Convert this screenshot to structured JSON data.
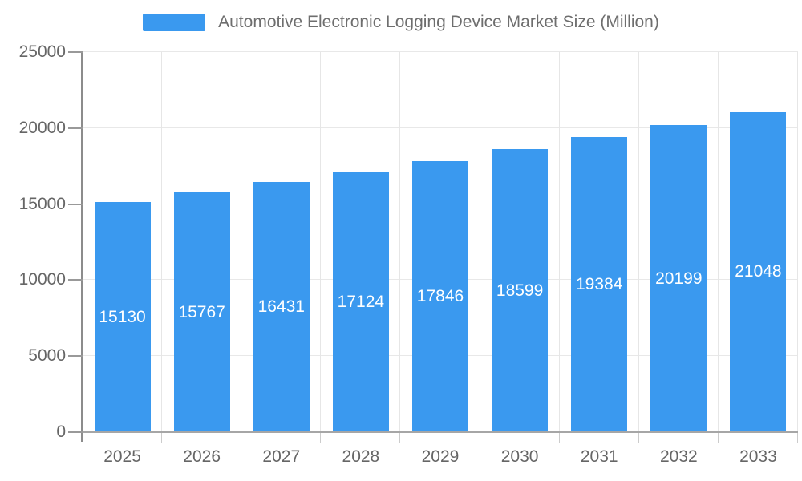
{
  "legend": {
    "label": "Automotive Electronic Logging Device Market Size (Million)"
  },
  "chart_data": {
    "type": "bar",
    "title": "Automotive Electronic Logging Device Market Size (Million)",
    "categories": [
      "2025",
      "2026",
      "2027",
      "2028",
      "2029",
      "2030",
      "2031",
      "2032",
      "2033"
    ],
    "values": [
      15130,
      15767,
      16431,
      17124,
      17846,
      18599,
      19384,
      20199,
      21048
    ],
    "xlabel": "",
    "ylabel": "",
    "ylim": [
      0,
      25000
    ],
    "yticks": [
      0,
      5000,
      10000,
      15000,
      20000,
      25000
    ],
    "bar_color": "#3A99EF",
    "bar_label_color": "#FFFFFF",
    "grid": true,
    "legend_position": "top-center",
    "colors": {
      "axis_text": "#666666",
      "legend_text": "#6E6E6E",
      "gridline": "#E8E8E8",
      "x_axis_line": "#A6A6A6",
      "y_axis_line": "#8C8C8C"
    }
  }
}
